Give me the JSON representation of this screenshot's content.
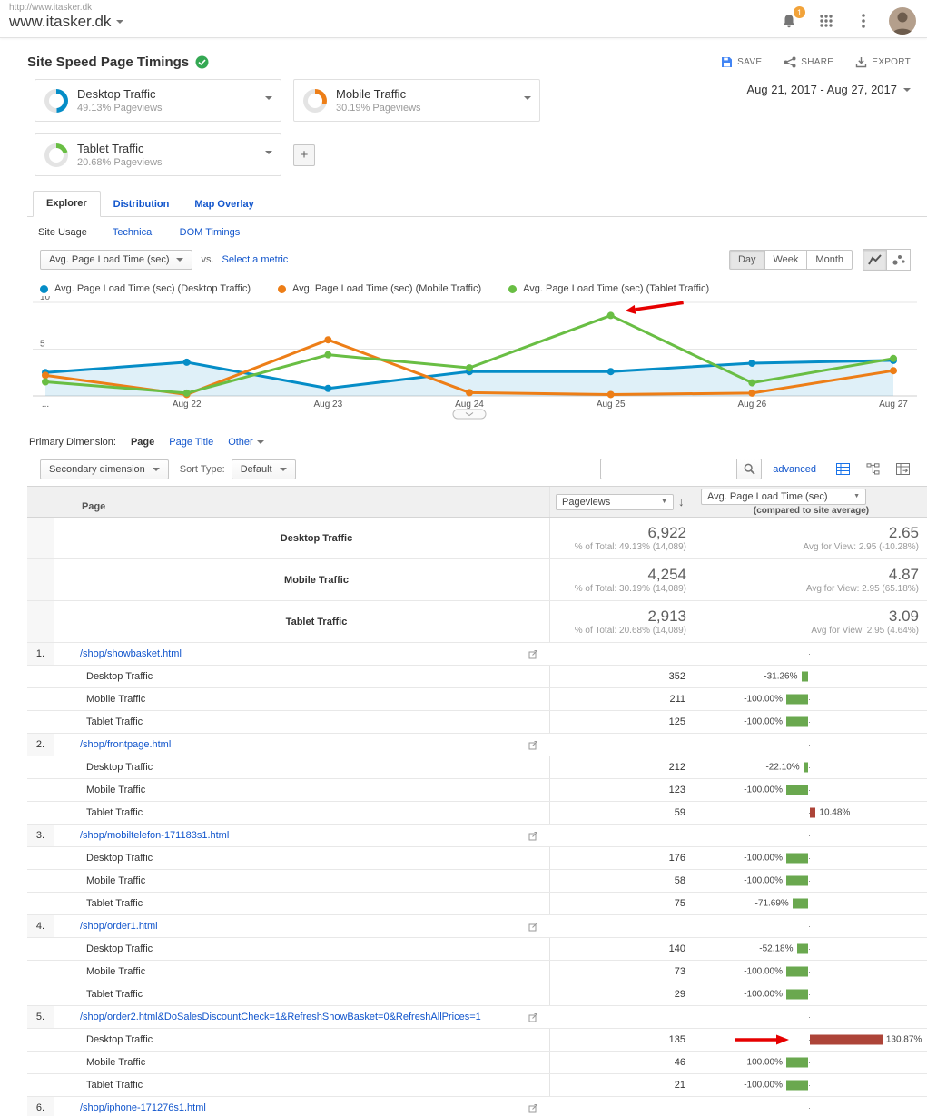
{
  "topbar": {
    "url": "http://www.itasker.dk",
    "site_title": "www.itasker.dk",
    "notification_count": "1"
  },
  "report": {
    "title": "Site Speed Page Timings",
    "save_label": "SAVE",
    "share_label": "SHARE",
    "export_label": "EXPORT",
    "date_range": "Aug 21, 2017 - Aug 27, 2017"
  },
  "glyphs": {
    "select_caret": "▼",
    "sort_descending": "↓"
  },
  "segments": {
    "cards": [
      {
        "name": "Desktop Traffic",
        "detail": "49.13% Pageviews",
        "percent": 49.13,
        "color": "#058dc7"
      },
      {
        "name": "Mobile Traffic",
        "detail": "30.19% Pageviews",
        "percent": 30.19,
        "color": "#ed7e17"
      },
      {
        "name": "Tablet Traffic",
        "detail": "20.68% Pageviews",
        "percent": 20.68,
        "color": "#69be44"
      }
    ],
    "add_label": "+"
  },
  "tabs": {
    "items": [
      {
        "label": "Explorer",
        "active": true
      },
      {
        "label": "Distribution",
        "active": false
      },
      {
        "label": "Map Overlay",
        "active": false
      }
    ]
  },
  "subtabs": {
    "items": [
      {
        "label": "Site Usage",
        "active": true
      },
      {
        "label": "Technical",
        "active": false
      },
      {
        "label": "DOM Timings",
        "active": false
      }
    ]
  },
  "metric_bar": {
    "metric_selector": "Avg. Page Load Time (sec)",
    "vs_label": "vs.",
    "select_metric": "Select a metric",
    "granularity": [
      {
        "label": "Day",
        "active": true
      },
      {
        "label": "Week",
        "active": false
      },
      {
        "label": "Month",
        "active": false
      }
    ]
  },
  "legend": [
    {
      "label": "Avg. Page Load Time (sec) (Desktop Traffic)",
      "color": "#058dc7"
    },
    {
      "label": "Avg. Page Load Time (sec) (Mobile Traffic)",
      "color": "#ed7e17"
    },
    {
      "label": "Avg. Page Load Time (sec) (Tablet Traffic)",
      "color": "#69be44"
    }
  ],
  "chart_data": {
    "type": "line",
    "x": [
      "...",
      "Aug 22",
      "Aug 23",
      "Aug 24",
      "Aug 25",
      "Aug 26",
      "Aug 27"
    ],
    "ylim": [
      0,
      10
    ],
    "yticks": [
      5,
      10
    ],
    "grid": "horizontal",
    "series": [
      {
        "name": "Avg. Page Load Time (sec) (Desktop Traffic)",
        "color": "#058dc7",
        "area_fill": true,
        "values": [
          2.5,
          3.6,
          0.8,
          2.6,
          2.6,
          3.5,
          3.8
        ]
      },
      {
        "name": "Avg. Page Load Time (sec) (Mobile Traffic)",
        "color": "#ed7e17",
        "area_fill": false,
        "values": [
          2.2,
          0.15,
          6.0,
          0.35,
          0.15,
          0.3,
          2.7
        ]
      },
      {
        "name": "Avg. Page Load Time (sec) (Tablet Traffic)",
        "color": "#69be44",
        "area_fill": false,
        "values": [
          1.5,
          0.3,
          4.4,
          3.0,
          8.6,
          1.4,
          4.0
        ]
      }
    ],
    "annotation": {
      "type": "red-arrow",
      "target_series": 2,
      "target_index": 4
    }
  },
  "primary_dimension": {
    "label": "Primary Dimension:",
    "options": [
      {
        "label": "Page",
        "active": true,
        "caret": false
      },
      {
        "label": "Page Title",
        "active": false,
        "caret": false
      },
      {
        "label": "Other",
        "active": false,
        "caret": true
      }
    ]
  },
  "table_controls": {
    "secondary_dimension": "Secondary dimension",
    "sort_type_label": "Sort Type:",
    "sort_type_value": "Default",
    "advanced_label": "advanced"
  },
  "table": {
    "columns": {
      "page": "Page",
      "pageviews": "Pageviews",
      "metric": "Avg. Page Load Time (sec)",
      "metric_note": "(compared to site average)"
    },
    "summary_rows": [
      {
        "label": "Desktop Traffic",
        "pageviews": "6,922",
        "pageviews_note": "% of Total: 49.13% (14,089)",
        "avg_load_time": "2.65",
        "avg_note": "Avg for View: 2.95 (-10.28%)"
      },
      {
        "label": "Mobile Traffic",
        "pageviews": "4,254",
        "pageviews_note": "% of Total: 30.19% (14,089)",
        "avg_load_time": "4.87",
        "avg_note": "Avg for View: 2.95 (65.18%)"
      },
      {
        "label": "Tablet Traffic",
        "pageviews": "2,913",
        "pageviews_note": "% of Total: 20.68% (14,089)",
        "avg_load_time": "3.09",
        "avg_note": "Avg for View: 2.95 (4.64%)"
      }
    ],
    "rows": [
      {
        "num": "1.",
        "page": "/shop/showbasket.html",
        "entries": [
          {
            "label": "Desktop Traffic",
            "pageviews": "352",
            "delta": -31.26,
            "delta_label": "-31.26%"
          },
          {
            "label": "Mobile Traffic",
            "pageviews": "211",
            "delta": -100,
            "delta_label": "-100.00%"
          },
          {
            "label": "Tablet Traffic",
            "pageviews": "125",
            "delta": -100,
            "delta_label": "-100.00%"
          }
        ]
      },
      {
        "num": "2.",
        "page": "/shop/frontpage.html",
        "entries": [
          {
            "label": "Desktop Traffic",
            "pageviews": "212",
            "delta": -22.1,
            "delta_label": "-22.10%"
          },
          {
            "label": "Mobile Traffic",
            "pageviews": "123",
            "delta": -100,
            "delta_label": "-100.00%"
          },
          {
            "label": "Tablet Traffic",
            "pageviews": "59",
            "delta": 10.48,
            "delta_label": "10.48%"
          }
        ]
      },
      {
        "num": "3.",
        "page": "/shop/mobiltelefon-171183s1.html",
        "entries": [
          {
            "label": "Desktop Traffic",
            "pageviews": "176",
            "delta": -100,
            "delta_label": "-100.00%"
          },
          {
            "label": "Mobile Traffic",
            "pageviews": "58",
            "delta": -100,
            "delta_label": "-100.00%"
          },
          {
            "label": "Tablet Traffic",
            "pageviews": "75",
            "delta": -71.69,
            "delta_label": "-71.69%"
          }
        ]
      },
      {
        "num": "4.",
        "page": "/shop/order1.html",
        "entries": [
          {
            "label": "Desktop Traffic",
            "pageviews": "140",
            "delta": -52.18,
            "delta_label": "-52.18%"
          },
          {
            "label": "Mobile Traffic",
            "pageviews": "73",
            "delta": -100,
            "delta_label": "-100.00%"
          },
          {
            "label": "Tablet Traffic",
            "pageviews": "29",
            "delta": -100,
            "delta_label": "-100.00%"
          }
        ]
      },
      {
        "num": "5.",
        "page": "/shop/order2.html&DoSalesDiscountCheck=1&RefreshShowBasket=0&RefreshAllPrices=1",
        "entries": [
          {
            "label": "Desktop Traffic",
            "pageviews": "135",
            "delta": 130.87,
            "delta_label": "130.87%",
            "arrow": true
          },
          {
            "label": "Mobile Traffic",
            "pageviews": "46",
            "delta": -100,
            "delta_label": "-100.00%"
          },
          {
            "label": "Tablet Traffic",
            "pageviews": "21",
            "delta": -100,
            "delta_label": "-100.00%"
          }
        ]
      },
      {
        "num": "6.",
        "page": "/shop/iphone-171276s1.html",
        "entries": []
      }
    ]
  }
}
